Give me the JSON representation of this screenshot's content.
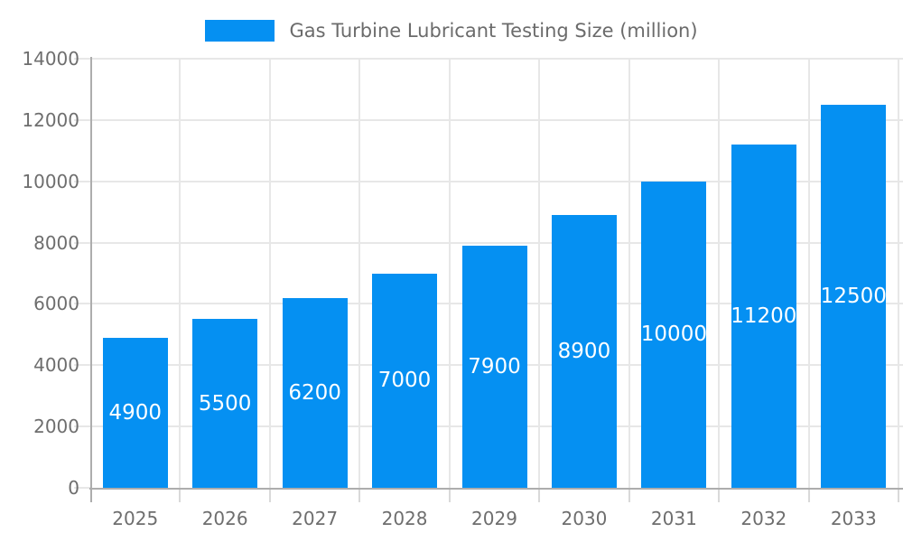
{
  "chart_data": {
    "type": "bar",
    "title": "",
    "legend_label": "Gas Turbine Lubricant Testing Size (million)",
    "categories": [
      "2025",
      "2026",
      "2027",
      "2028",
      "2029",
      "2030",
      "2031",
      "2032",
      "2033"
    ],
    "series": [
      {
        "name": "Gas Turbine Lubricant Testing Size (million)",
        "values": [
          4900,
          5500,
          6200,
          7000,
          7900,
          8900,
          10000,
          11200,
          12500
        ]
      }
    ],
    "xlabel": "",
    "ylabel": "",
    "ylim": [
      0,
      14000
    ],
    "yticks": [
      0,
      2000,
      4000,
      6000,
      8000,
      10000,
      12000,
      14000
    ],
    "grid": true,
    "legend_position": "top-center",
    "data_labels_inside_bars": true,
    "colors": {
      "bar": "#0590F2",
      "grid": "#e7e7e7",
      "axis": "#adadad",
      "tick_text": "#6e6e6e",
      "legend_text": "#6b6b6b",
      "data_label": "#ffffff",
      "background": "#ffffff"
    }
  }
}
